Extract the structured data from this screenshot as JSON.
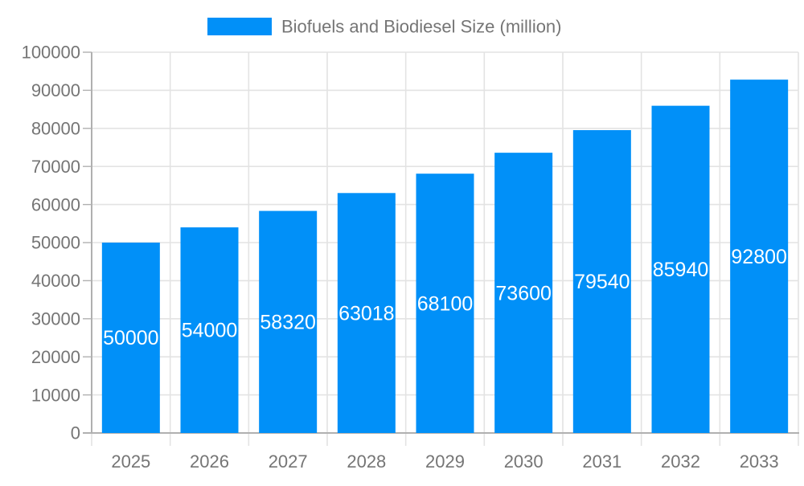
{
  "chart_data": {
    "type": "bar",
    "title": "Biofuels and Biodiesel Size (million)",
    "legend": [
      "Biofuels and Biodiesel Size (million)"
    ],
    "legend_position": "top",
    "categories": [
      "2025",
      "2026",
      "2027",
      "2028",
      "2029",
      "2030",
      "2031",
      "2032",
      "2033"
    ],
    "series": [
      {
        "name": "Biofuels and Biodiesel Size (million)",
        "values": [
          50000,
          54000,
          58320,
          63018,
          68100,
          73600,
          79540,
          85940,
          92800
        ]
      }
    ],
    "data_labels": [
      "50000",
      "54000",
      "58320",
      "63018",
      "68100",
      "73600",
      "79540",
      "85940",
      "92800"
    ],
    "xlabel": "",
    "ylabel": "",
    "ylim": [
      0,
      100000
    ],
    "ytick_interval": 10000,
    "yticks": [
      0,
      10000,
      20000,
      30000,
      40000,
      50000,
      60000,
      70000,
      80000,
      90000,
      100000
    ],
    "ytick_labels": [
      "0",
      "10000",
      "20000",
      "30000",
      "40000",
      "50000",
      "60000",
      "70000",
      "80000",
      "90000",
      "100000"
    ],
    "grid": true,
    "colors": {
      "bar": "#0190F8",
      "bar_label_text": "#FFFFFF",
      "axis_text": "#757575",
      "grid_line": "#E3E3E3",
      "axis_line": "#B0B0B0",
      "background": "#FFFFFF"
    }
  }
}
